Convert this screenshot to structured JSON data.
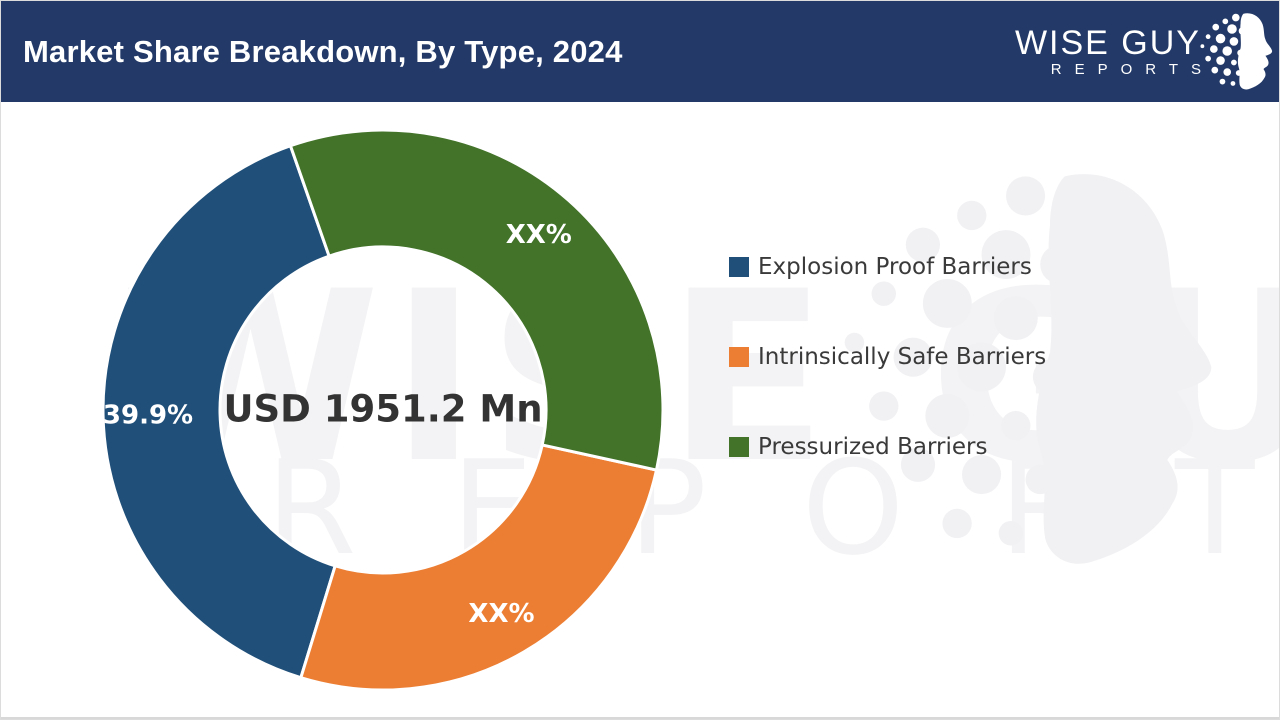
{
  "header": {
    "title": "Market Share Breakdown, By Type, 2024",
    "logo": {
      "line1": "WISE GUY",
      "line2": "REPORTS"
    }
  },
  "chart_data": {
    "type": "donut",
    "title": "Market Share Breakdown, By Type, 2024",
    "center_label": "USD 1951.2 Mn",
    "start_angle_deg": 109.3,
    "direction": "counterclockwise",
    "legend_position": "right",
    "segments": [
      {
        "label": "Explosion Proof Barriers",
        "value_label": "39.9%",
        "percent": 39.9,
        "color": "#20507A"
      },
      {
        "label": "Intrinsically Safe Barriers",
        "value_label": "XX%",
        "percent": 26.3,
        "color": "#EC7E33"
      },
      {
        "label": "Pressurized Barriers",
        "value_label": "XX%",
        "percent": 33.8,
        "color": "#427329"
      }
    ]
  },
  "legend": {
    "items": [
      {
        "label": "Explosion Proof Barriers",
        "color": "#20507A"
      },
      {
        "label": "Intrinsically Safe Barriers",
        "color": "#EC7E33"
      },
      {
        "label": "Pressurized Barriers",
        "color": "#427329"
      }
    ]
  },
  "watermark": {
    "line1": "WISE GUY",
    "line2": "REPORTS"
  },
  "colors": {
    "header_bg": "#233A68",
    "center_text": "#333333",
    "legend_text": "#3a3a3a",
    "slice_label_text": "#ffffff",
    "watermark": "#f3f3f5"
  }
}
